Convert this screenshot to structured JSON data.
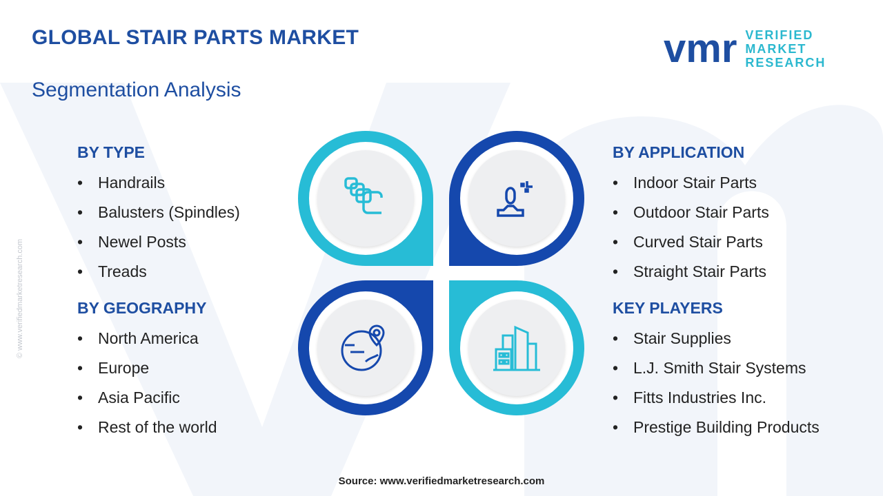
{
  "header": {
    "title": "GLOBAL STAIR PARTS MARKET",
    "subtitle": "Segmentation Analysis"
  },
  "logo": {
    "mark": "vmr",
    "line1": "VERIFIED",
    "line2": "MARKET",
    "line3": "RESEARCH"
  },
  "watermark": "© www.verifiedmarketresearch.com",
  "sections": {
    "type": {
      "heading": "BY TYPE",
      "items": [
        "Handrails",
        "Balusters (Spindles)",
        "Newel Posts",
        "Treads"
      ]
    },
    "geography": {
      "heading": "BY GEOGRAPHY",
      "items": [
        "North America",
        "Europe",
        "Asia Pacific",
        "Rest of the world"
      ]
    },
    "application": {
      "heading": "BY APPLICATION",
      "items": [
        "Indoor Stair Parts",
        "Outdoor Stair Parts",
        "Curved Stair Parts",
        "Straight Stair Parts"
      ]
    },
    "players": {
      "heading": "KEY PLAYERS",
      "items": [
        "Stair Supplies",
        "L.J. Smith Stair Systems",
        "Fitts Industries Inc.",
        "Prestige Building Products"
      ]
    }
  },
  "colors": {
    "dark_blue": "#1548ad",
    "cyan": "#27bcd6",
    "title": "#1e4ea1"
  },
  "source": "Source: www.verifiedmarketresearch.com"
}
